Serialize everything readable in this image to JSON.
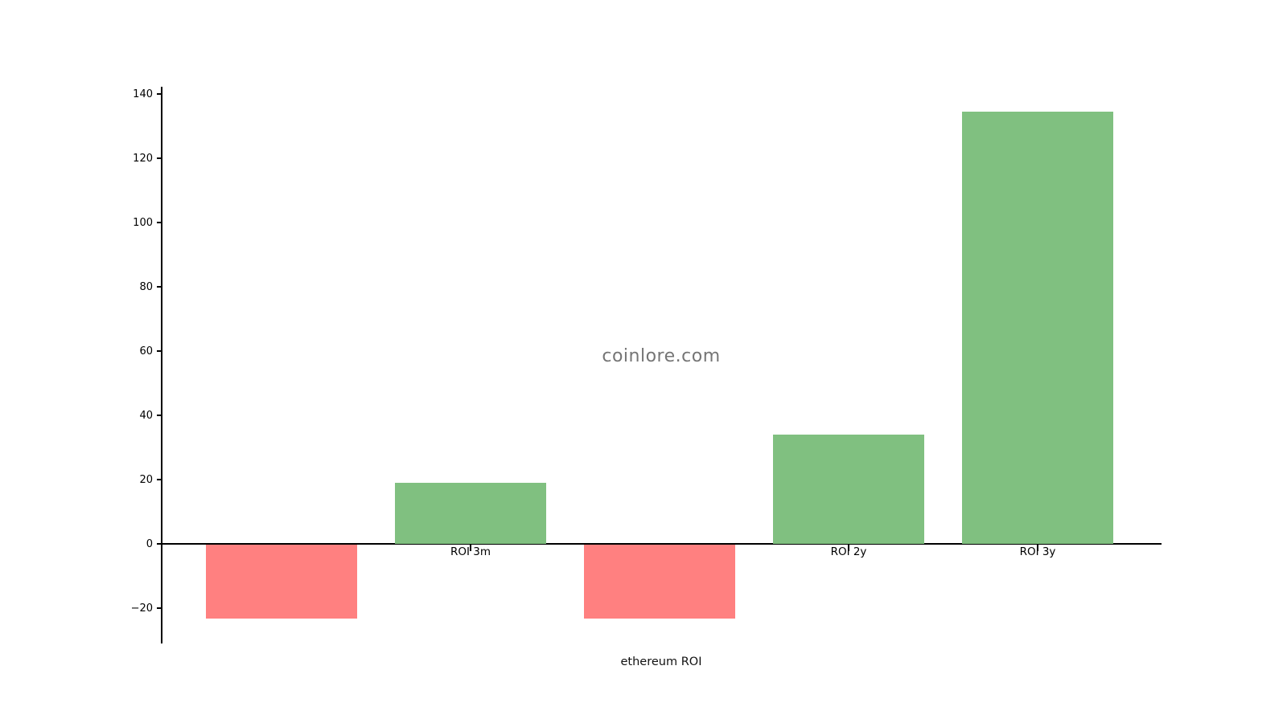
{
  "watermark_text": "coinlore.com",
  "axis_color": "#000000",
  "watermark_color": "#757575",
  "chart_data": {
    "type": "bar",
    "title": "",
    "xlabel": "ethereum ROI",
    "ylabel": "",
    "categories": [
      "",
      "ROI 3m",
      "",
      "ROI 2y",
      "ROI 3y"
    ],
    "values": [
      -23,
      19,
      -23,
      34,
      134.6
    ],
    "bar_colors": [
      "#ff8080",
      "#80c080",
      "#ff8080",
      "#80c080",
      "#80c080"
    ],
    "positive_color": "#80c080",
    "negative_color": "#ff8080",
    "yticks": [
      -20,
      0,
      20,
      40,
      60,
      80,
      100,
      120,
      140
    ],
    "ylim": [
      -31,
      142.25
    ],
    "grid": false,
    "legend": false,
    "watermark": "coinlore.com"
  }
}
